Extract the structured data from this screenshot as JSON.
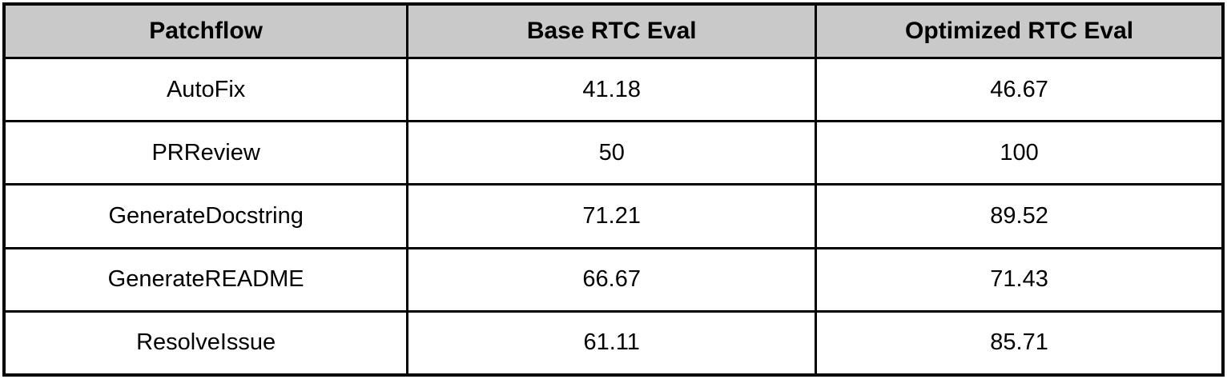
{
  "colors": {
    "header_bg": "#c9c9c9",
    "row_bg": "#ffffff",
    "border": "#000000",
    "text": "#000000"
  },
  "table": {
    "columns": [
      "Patchflow",
      "Base RTC Eval",
      "Optimized RTC Eval"
    ],
    "rows": [
      [
        "AutoFix",
        "41.18",
        "46.67"
      ],
      [
        "PRReview",
        "50",
        "100"
      ],
      [
        "GenerateDocstring",
        "71.21",
        "89.52"
      ],
      [
        "GenerateREADME",
        "66.67",
        "71.43"
      ],
      [
        "ResolveIssue",
        "61.11",
        "85.71"
      ]
    ]
  },
  "chart_data": {
    "type": "table",
    "title": "",
    "columns": [
      "Patchflow",
      "Base RTC Eval",
      "Optimized RTC Eval"
    ],
    "categories": [
      "AutoFix",
      "PRReview",
      "GenerateDocstring",
      "GenerateREADME",
      "ResolveIssue"
    ],
    "series": [
      {
        "name": "Base RTC Eval",
        "values": [
          41.18,
          50,
          71.21,
          66.67,
          61.11
        ]
      },
      {
        "name": "Optimized RTC Eval",
        "values": [
          46.67,
          100,
          89.52,
          71.43,
          85.71
        ]
      }
    ],
    "layout": {
      "grid": "full-borders",
      "header_style": "bold-gray",
      "alignment": "center"
    }
  }
}
